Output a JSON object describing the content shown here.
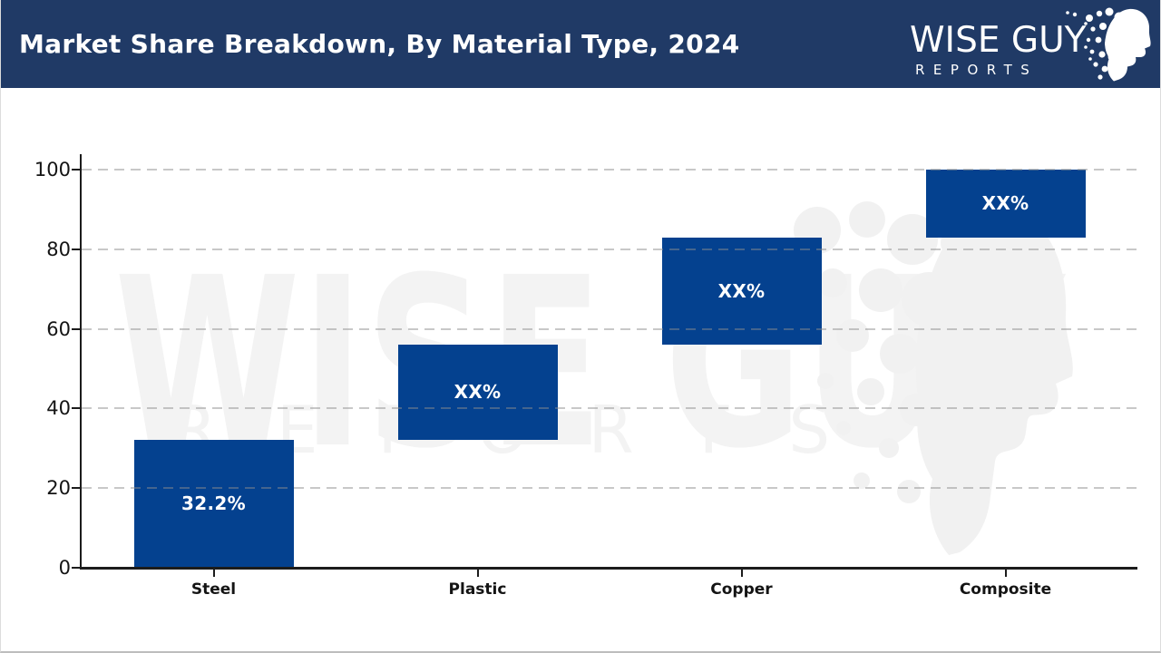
{
  "header": {
    "title": "Market Share Breakdown, By Material Type, 2024",
    "logo": {
      "line1": "WISE GUY",
      "line2": "REPORTS"
    }
  },
  "watermark": {
    "line1": "WISE GUY",
    "line2": "REPORTS"
  },
  "chart_data": {
    "type": "bar",
    "subtype": "waterfall",
    "title": "Market Share Breakdown, By Material Type, 2024",
    "categories": [
      "Steel",
      "Plastic",
      "Copper",
      "Composite"
    ],
    "segments": [
      {
        "category": "Steel",
        "start": 0,
        "end": 32.2,
        "label": "32.2%"
      },
      {
        "category": "Plastic",
        "start": 32.2,
        "end": 56,
        "label": "XX%"
      },
      {
        "category": "Copper",
        "start": 56,
        "end": 83,
        "label": "XX%"
      },
      {
        "category": "Composite",
        "start": 83,
        "end": 100,
        "label": "XX%"
      }
    ],
    "xlabel": "",
    "ylabel": "",
    "ylim": [
      0,
      100
    ],
    "yticks": [
      0,
      20,
      40,
      60,
      80,
      100
    ],
    "grid": {
      "horizontal": true,
      "style": "dashed"
    },
    "legend": "none",
    "bar_color": "#04418f",
    "bar_label_color": "#ffffff",
    "header_color": "#203a66"
  }
}
